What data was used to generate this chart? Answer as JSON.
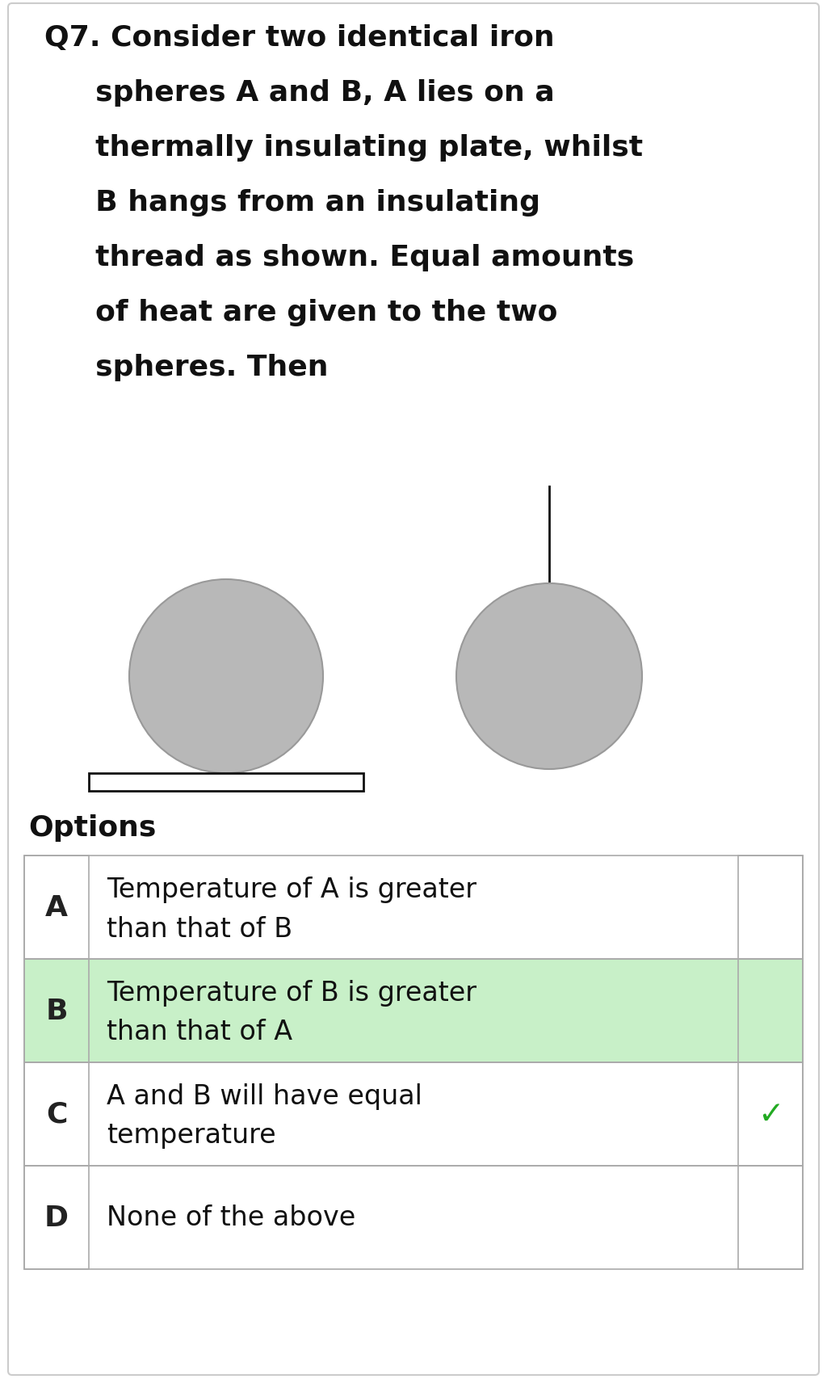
{
  "bg_color": "#ffffff",
  "border_color": "#cccccc",
  "question_lines": [
    "Q7. Consider two identical iron",
    "     spheres A and B, A lies on a",
    "     thermally insulating plate, whilst",
    "     B hangs from an insulating",
    "     thread as shown. Equal amounts",
    "     of heat are given to the two",
    "     spheres. Then"
  ],
  "sphere_color": "#b8b8b8",
  "sphere_edge_color": "#999999",
  "plate_color": "#ffffff",
  "plate_edge_color": "#111111",
  "thread_color": "#111111",
  "options_label": "Options",
  "options": [
    {
      "label": "A",
      "text1": "Temperature of A is greater",
      "text2": "than that of B",
      "highlight": false,
      "checkmark": false
    },
    {
      "label": "B",
      "text1": "Temperature of B is greater",
      "text2": "than that of A",
      "highlight": true,
      "checkmark": false
    },
    {
      "label": "C",
      "text1": "A and B will have equal",
      "text2": "temperature",
      "highlight": false,
      "checkmark": true
    },
    {
      "label": "D",
      "text1": "None of the above",
      "text2": "",
      "highlight": false,
      "checkmark": false
    }
  ],
  "highlight_color": "#c8f0c8",
  "checkmark_color": "#22aa22",
  "text_color": "#111111",
  "option_label_color": "#222222",
  "table_border_color": "#aaaaaa",
  "font_size_question": 26,
  "font_size_options": 24,
  "font_size_label": 26
}
